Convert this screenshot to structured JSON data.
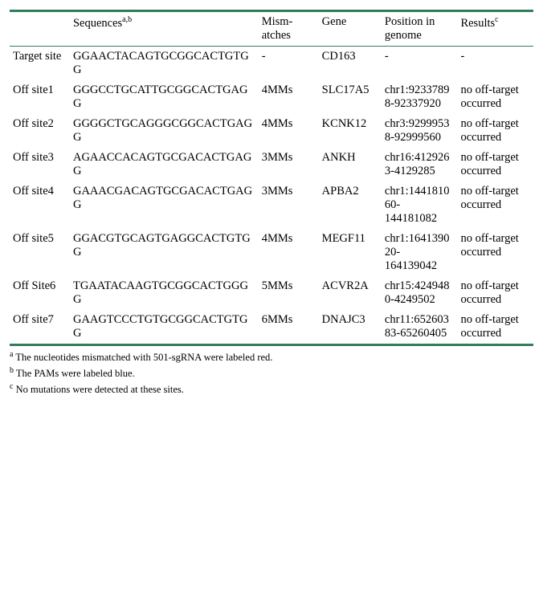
{
  "colors": {
    "rule": "#2f7d5a",
    "text": "#000000",
    "bg": "#ffffff"
  },
  "fonts": {
    "body_size_pt": 11,
    "footnote_size_pt": 9,
    "family": "Palatino-like serif"
  },
  "headers": {
    "col1": "",
    "col2": "Sequences",
    "col2_sup": "a,b",
    "col3": "Mism-atches",
    "col4": "Gene",
    "col5": "Position in genome",
    "col6": "Results",
    "col6_sup": "c"
  },
  "rows": [
    {
      "label": "Target site",
      "sequence": "GGAACTACAGTGCGGCACTGTGG",
      "mismatches": "-",
      "gene": "CD163",
      "position": "-",
      "results": "-"
    },
    {
      "label": "Off site1",
      "sequence": "GGGCCTGCATTGCGGCACTGAGG",
      "mismatches": "4MMs",
      "gene": "SLC17A5",
      "position": "chr1:92337898-92337920",
      "results": "no off-target occurred"
    },
    {
      "label": "Off site2",
      "sequence": "GGGGCTGCAGGGCGGCACTGAGG",
      "mismatches": "4MMs",
      "gene": "KCNK12",
      "position": "chr3:92999538-92999560",
      "results": "no off-target occurred"
    },
    {
      "label": "Off site3",
      "sequence": "AGAACCACAGTGCGACACTGAGG",
      "mismatches": "3MMs",
      "gene": "ANKH",
      "position": "chr16:4129263-4129285",
      "results": "no off-target occurred"
    },
    {
      "label": "Off site4",
      "sequence": "GAAACGACAGTGCGACACTGAGG",
      "mismatches": "3MMs",
      "gene": "APBA2",
      "position": "chr1:144181060-144181082",
      "results": "no off-target occurred"
    },
    {
      "label": "Off site5",
      "sequence": "GGACGTGCAGTGAGGCACTGTGG",
      "mismatches": "4MMs",
      "gene": "MEGF11",
      "position": "chr1:164139020-164139042",
      "results": "no off-target occurred"
    },
    {
      "label": "Off Site6",
      "sequence": "TGAATACAAGTGCGGCACTGGGG",
      "mismatches": "5MMs",
      "gene": "ACVR2A",
      "position": "chr15:4249480-4249502",
      "results": "no off-target occurred"
    },
    {
      "label": "Off site7",
      "sequence": "GAAGTCCCTGTGCGGCACTGTGG",
      "mismatches": "6MMs",
      "gene": "DNAJC3",
      "position": "chr11:65260383-65260405",
      "results": "no off-target occurred"
    }
  ],
  "footnotes": {
    "a": "The nucleotides mismatched with 501-sgRNA were labeled red.",
    "b": "The PAMs were labeled blue.",
    "c": "No mutations were detected at these sites."
  }
}
